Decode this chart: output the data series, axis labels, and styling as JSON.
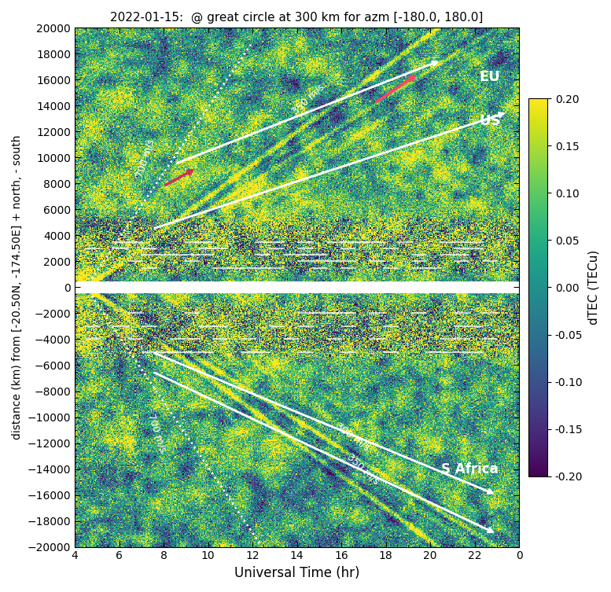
{
  "title": "2022-01-15:  @ great circle at 300 km for azm [-180.0, 180.0]",
  "xlabel": "Universal Time (hr)",
  "ylabel": "distance (km) from [-20.50N, -174.50E] + north, - south",
  "colorbar_label": "dTEC (TECu)",
  "xlim": [
    4,
    24
  ],
  "ylim": [
    -20000,
    20000
  ],
  "xticks": [
    4,
    6,
    8,
    10,
    12,
    14,
    16,
    18,
    20,
    22,
    0
  ],
  "yticks": [
    -20000,
    -18000,
    -16000,
    -14000,
    -12000,
    -10000,
    -8000,
    -6000,
    -4000,
    -2000,
    0,
    2000,
    4000,
    6000,
    8000,
    10000,
    12000,
    14000,
    16000,
    18000,
    20000
  ],
  "vmin": -0.2,
  "vmax": 0.2,
  "cmap": "viridis",
  "seed": 42,
  "fig_width": 7.77,
  "fig_height": 7.53
}
